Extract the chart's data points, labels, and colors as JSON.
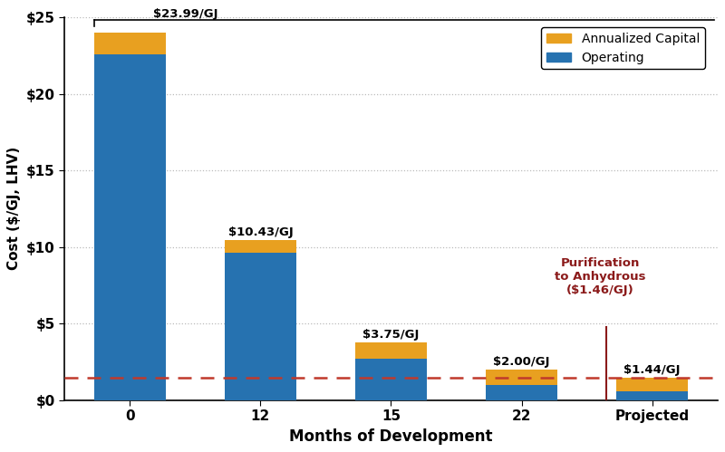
{
  "categories": [
    "0",
    "12",
    "15",
    "22",
    "Projected"
  ],
  "operating": [
    22.6,
    9.6,
    2.7,
    1.0,
    0.6
  ],
  "capital": [
    1.39,
    0.83,
    1.05,
    1.0,
    0.84
  ],
  "labels": [
    "$23.99/GJ",
    "$10.43/GJ",
    "$3.75/GJ",
    "$2.00/GJ",
    "$1.44/GJ"
  ],
  "bar_color_op": "#2672B0",
  "bar_color_cap": "#E8A020",
  "dashed_line_y": 1.46,
  "dashed_line_color": "#C0392B",
  "vline_color": "#8B1A1A",
  "annotation_text": "Purification\nto Anhydrous\n($1.46/GJ)",
  "annotation_color": "#8B1A1A",
  "ylabel": "Cost ($/GJ, LHV)",
  "xlabel": "Months of Development",
  "legend_capital": "Annualized Capital",
  "legend_op": "Operating",
  "ylim": [
    0,
    25
  ],
  "yticks": [
    0,
    5,
    10,
    15,
    20,
    25
  ],
  "ytick_labels": [
    "$0",
    "$5",
    "$10",
    "$15",
    "$20",
    "$25"
  ],
  "background_color": "#FFFFFF",
  "grid_color": "#BBBBBB"
}
